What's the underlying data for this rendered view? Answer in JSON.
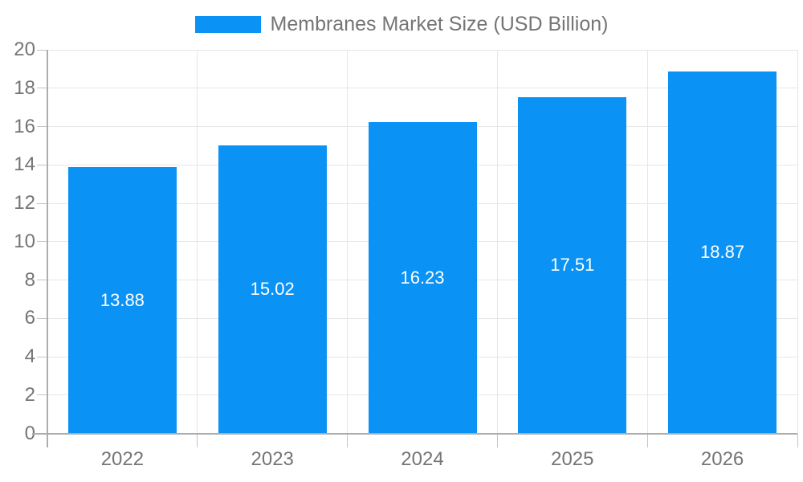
{
  "chart_data": {
    "type": "bar",
    "title": "Membranes Market Size (USD Billion)",
    "categories": [
      "2022",
      "2023",
      "2024",
      "2025",
      "2026"
    ],
    "values": [
      13.88,
      15.02,
      16.23,
      17.51,
      18.87
    ],
    "value_labels": [
      "13.88",
      "15.02",
      "16.23",
      "17.51",
      "18.87"
    ],
    "xlabel": "",
    "ylabel": "",
    "ylim": [
      0,
      20
    ],
    "ytick_step": 2,
    "ytick_labels": [
      "0",
      "2",
      "4",
      "6",
      "8",
      "10",
      "12",
      "14",
      "16",
      "18",
      "20"
    ],
    "grid": true,
    "legend_position": "top-center",
    "legend_entries": [
      "Membranes Market Size (USD Billion)"
    ],
    "colors": {
      "bar": "#0a92f5",
      "grid": "#e6e6e6",
      "axis": "#adadad",
      "tick": "#c4c4c4",
      "text": "#757575",
      "value_label": "#ffffff",
      "background": "#ffffff"
    }
  }
}
